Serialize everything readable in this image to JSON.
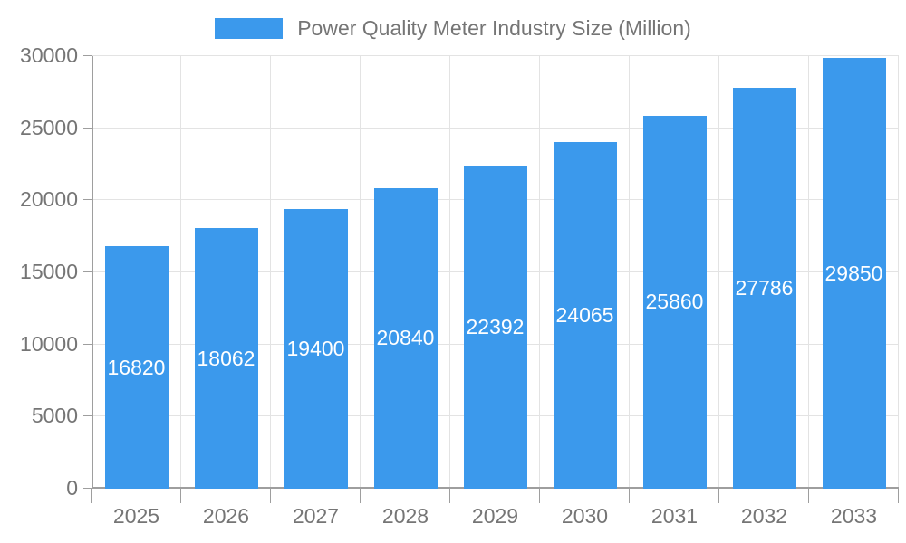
{
  "chart_data": {
    "type": "bar",
    "title": "Power Quality Meter Industry Size (Million)",
    "legend_position": "top",
    "categories": [
      "2025",
      "2026",
      "2027",
      "2028",
      "2029",
      "2030",
      "2031",
      "2032",
      "2033"
    ],
    "series": [
      {
        "name": "Power Quality Meter Industry Size (Million)",
        "values": [
          16820,
          18062,
          19400,
          20840,
          22392,
          24065,
          25860,
          27786,
          29850
        ]
      }
    ],
    "value_labels": [
      "16820",
      "18062",
      "19400",
      "20840",
      "22392",
      "24065",
      "25860",
      "27786",
      "29850"
    ],
    "xlabel": "",
    "ylabel": "",
    "ylim": [
      0,
      30000
    ],
    "yticks": [
      0,
      5000,
      10000,
      15000,
      20000,
      25000,
      30000
    ],
    "ytick_labels": [
      "0",
      "5000",
      "10000",
      "15000",
      "20000",
      "25000",
      "30000"
    ],
    "grid": true,
    "colors": {
      "bar": "#3B99EC",
      "grid_line": "#E3E3E3",
      "axis_line": "#9E9E9E",
      "tick_label": "#757575",
      "value_label": "#FFFFFF",
      "background": "#FFFFFF"
    }
  }
}
